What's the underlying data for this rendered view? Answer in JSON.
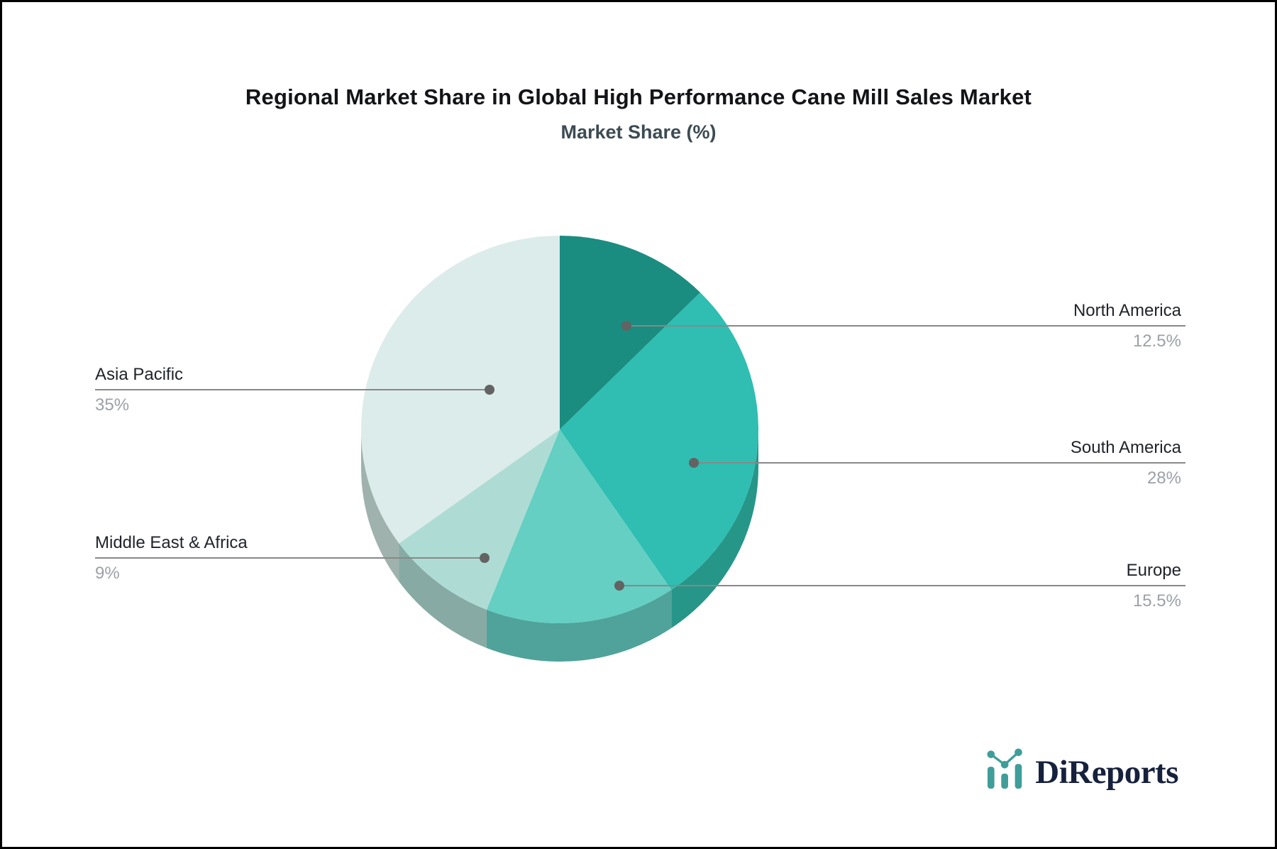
{
  "header": {
    "title": "Regional Market Share in Global High Performance Cane Mill Sales Market",
    "subtitle": "Market Share (%)"
  },
  "chart_data": {
    "type": "pie",
    "style": "3d",
    "title": "Regional Market Share in Global High Performance Cane Mill Sales Market",
    "subtitle": "Market Share (%)",
    "unit": "%",
    "start_angle": "12-oclock",
    "direction": "clockwise",
    "legend": "none",
    "label_style": "leader-lines",
    "categories": [
      "North America",
      "South America",
      "Europe",
      "Middle East & Africa",
      "Asia Pacific"
    ],
    "values": [
      12.5,
      28,
      15.5,
      9,
      35
    ],
    "slices": [
      {
        "name": "North America",
        "value": 12.5,
        "display": "12.5%",
        "color": "#1b8c80",
        "side_color": "#17776d",
        "label_side": "right"
      },
      {
        "name": "South America",
        "value": 28,
        "display": "28%",
        "color": "#2fbeb1",
        "side_color": "#269689",
        "label_side": "right"
      },
      {
        "name": "Europe",
        "value": 15.5,
        "display": "15.5%",
        "color": "#64cfc2",
        "side_color": "#4fa39a",
        "label_side": "right"
      },
      {
        "name": "Middle East & Africa",
        "value": 9,
        "display": "9%",
        "color": "#aedcd5",
        "side_color": "#87aaa4",
        "label_side": "left"
      },
      {
        "name": "Asia Pacific",
        "value": 35,
        "display": "35%",
        "color": "#dcecea",
        "side_color": "#9fb2ad",
        "label_side": "left"
      }
    ]
  },
  "logo": {
    "text": "DiReports",
    "icon": "analytics-bars-icon",
    "icon_color": "#3f9e99",
    "text_color": "#16213c"
  },
  "colors": {
    "background": "#ffffff",
    "frame": "#000000",
    "title": "#121417",
    "subtitle": "#3c4b53",
    "label": "#20242a",
    "percent": "#9ba1a7",
    "leader_line": "#888888",
    "leader_dot": "#636363"
  }
}
